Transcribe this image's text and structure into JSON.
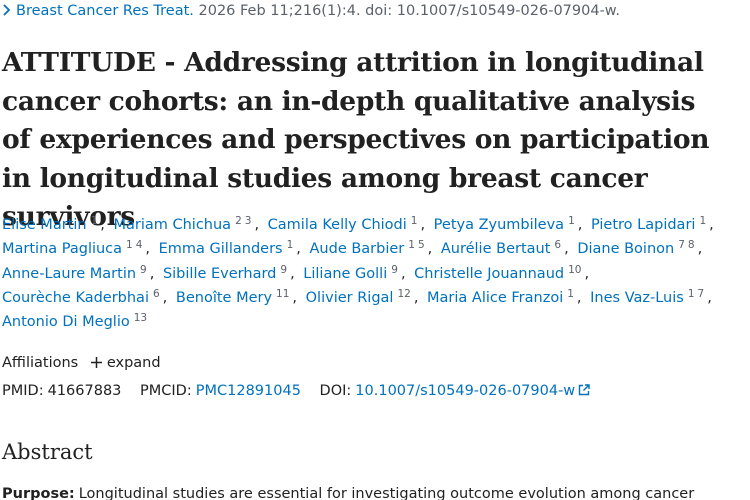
{
  "citation": {
    "journal": "Breast Cancer Res Treat.",
    "details": "2026 Feb 11;216(1):4. doi: 10.1007/s10549-026-07904-w."
  },
  "title": "ATTITUDE - Addressing attrition in longitudinal cancer cohorts: an in-depth qualitative analysis of experiences and perspectives on participation in longitudinal studies among breast cancer survivors",
  "authors": [
    {
      "name": "Elise Martin",
      "affiliations": [
        "1"
      ]
    },
    {
      "name": "Mariam Chichua",
      "affiliations": [
        "2",
        "3"
      ]
    },
    {
      "name": "Camila Kelly Chiodi",
      "affiliations": [
        "1"
      ]
    },
    {
      "name": "Petya Zyumbileva",
      "affiliations": [
        "1"
      ]
    },
    {
      "name": "Pietro Lapidari",
      "affiliations": [
        "1"
      ]
    },
    {
      "name": "Martina Pagliuca",
      "affiliations": [
        "1",
        "4"
      ]
    },
    {
      "name": "Emma Gillanders",
      "affiliations": [
        "1"
      ]
    },
    {
      "name": "Aude Barbier",
      "affiliations": [
        "1",
        "5"
      ]
    },
    {
      "name": "Aurélie Bertaut",
      "affiliations": [
        "6"
      ]
    },
    {
      "name": "Diane Boinon",
      "affiliations": [
        "7",
        "8"
      ]
    },
    {
      "name": "Anne-Laure Martin",
      "affiliations": [
        "9"
      ]
    },
    {
      "name": "Sibille Everhard",
      "affiliations": [
        "9"
      ]
    },
    {
      "name": "Liliane Golli",
      "affiliations": [
        "9"
      ]
    },
    {
      "name": "Christelle Jouannaud",
      "affiliations": [
        "10"
      ]
    },
    {
      "name": "Courèche Kaderbhai",
      "affiliations": [
        "6"
      ]
    },
    {
      "name": "Benoîte Mery",
      "affiliations": [
        "11"
      ]
    },
    {
      "name": "Olivier Rigal",
      "affiliations": [
        "12"
      ]
    },
    {
      "name": "Maria Alice Franzoi",
      "affiliations": [
        "1"
      ]
    },
    {
      "name": "Ines Vaz-Luis",
      "affiliations": [
        "1",
        "7"
      ]
    },
    {
      "name": "Antonio Di Meglio",
      "affiliations": [
        "13"
      ]
    }
  ],
  "affiliations": {
    "label": "Affiliations",
    "toggle": "expand"
  },
  "identifiers": {
    "pmid_label": "PMID:",
    "pmid": "41667883",
    "pmcid_label": "PMCID:",
    "pmcid": "PMC12891045",
    "doi_label": "DOI:",
    "doi": "10.1007/s10549-026-07904-w"
  },
  "abstract": {
    "heading": "Abstract",
    "purpose_label": "Purpose:",
    "purpose_text": "Longitudinal studies are essential for investigating outcome evolution among cancer"
  }
}
